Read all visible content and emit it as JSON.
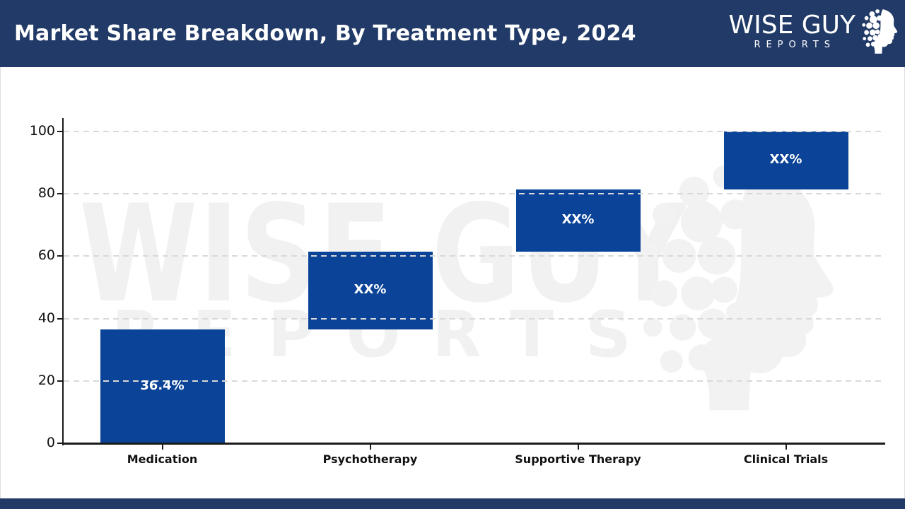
{
  "header": {
    "title": "Market Share Breakdown, By Treatment Type, 2024",
    "logo": {
      "line1": "WISE GUY",
      "line2": "REPORTS"
    }
  },
  "watermark": {
    "line1": "WISE GUY",
    "line2": "REPORTS"
  },
  "chart_data": {
    "type": "bar",
    "variant": "waterfall",
    "title": "Market Share Breakdown, By Treatment Type, 2024",
    "categories": [
      "Medication",
      "Psychotherapy",
      "Supportive Therapy",
      "Clinical Trials"
    ],
    "series": [
      {
        "name": "Market Share (%)",
        "segments": [
          {
            "category": "Medication",
            "start": 0,
            "end": 36.4,
            "label": "36.4%"
          },
          {
            "category": "Psychotherapy",
            "start": 36.4,
            "end": 61.4,
            "label": "XX%"
          },
          {
            "category": "Supportive Therapy",
            "start": 61.4,
            "end": 81.3,
            "label": "XX%"
          },
          {
            "category": "Clinical Trials",
            "start": 81.3,
            "end": 100,
            "label": "XX%"
          }
        ]
      }
    ],
    "xlabel": "",
    "ylabel": "",
    "ylim": [
      0,
      105
    ],
    "yticks": [
      0,
      20,
      40,
      60,
      80,
      100
    ],
    "grid": "horizontal-dashed",
    "legend": "none"
  },
  "colors": {
    "header_bg": "#213a67",
    "footer_bg": "#213a67",
    "bar": "#0a4397",
    "bar_label": "#ffffff",
    "axis": "#1a1a1a",
    "grid": "#d9d9d9",
    "watermark": "#f1f1f1",
    "background": "#ffffff"
  }
}
